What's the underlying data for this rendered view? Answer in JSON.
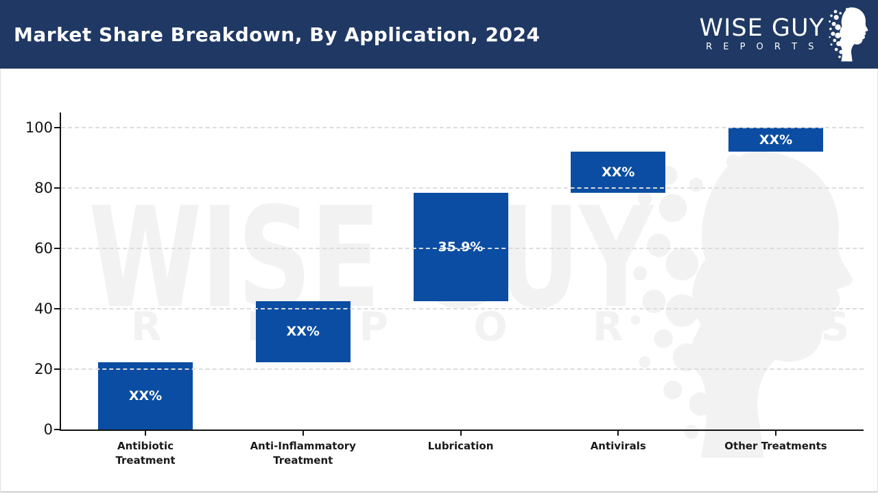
{
  "header": {
    "title": "Market Share Breakdown, By Application, 2024",
    "logo": {
      "name_line": "WISE GUY",
      "reports_line": "R E P O R T S"
    }
  },
  "watermark": {
    "name_line": "WISE GUY",
    "reports_line": "R E P O R T S"
  },
  "chart_data": {
    "type": "bar",
    "subtype": "waterfall",
    "title": "Market Share Breakdown, By Application, 2024",
    "unit": "%",
    "categories": [
      "Antibiotic Treatment",
      "Anti-Inflammatory Treatment",
      "Lubrication",
      "Antivirals",
      "Other Treatments"
    ],
    "category_lines": [
      [
        "Antibiotic",
        "Treatment"
      ],
      [
        "Anti-Inflammatory",
        "Treatment"
      ],
      [
        "Lubrication"
      ],
      [
        "Antivirals"
      ],
      [
        "Other Treatments"
      ]
    ],
    "segments": [
      {
        "category": "Antibiotic Treatment",
        "start": 0,
        "end": 22.3,
        "label": "XX%"
      },
      {
        "category": "Anti-Inflammatory Treatment",
        "start": 22.3,
        "end": 42.5,
        "label": "XX%"
      },
      {
        "category": "Lubrication",
        "start": 42.5,
        "end": 78.4,
        "label": "35.9%"
      },
      {
        "category": "Antivirals",
        "start": 78.4,
        "end": 92.0,
        "label": "XX%"
      },
      {
        "category": "Other Treatments",
        "start": 92.0,
        "end": 100,
        "label": "XX%"
      }
    ],
    "yticks": [
      0,
      20,
      40,
      60,
      80,
      100
    ],
    "ylim": [
      0,
      105
    ],
    "xlabel": "",
    "ylabel": "",
    "legend": null,
    "grid": {
      "horizontal": true,
      "style": "dashed",
      "over_bars": true
    },
    "colors": {
      "bar": "#0b4da2",
      "bar_label": "#ffffff",
      "grid": "#dcdcdc",
      "axis": "#111111",
      "header_bg": "#1f3864",
      "watermark": "#f2f2f2"
    }
  }
}
